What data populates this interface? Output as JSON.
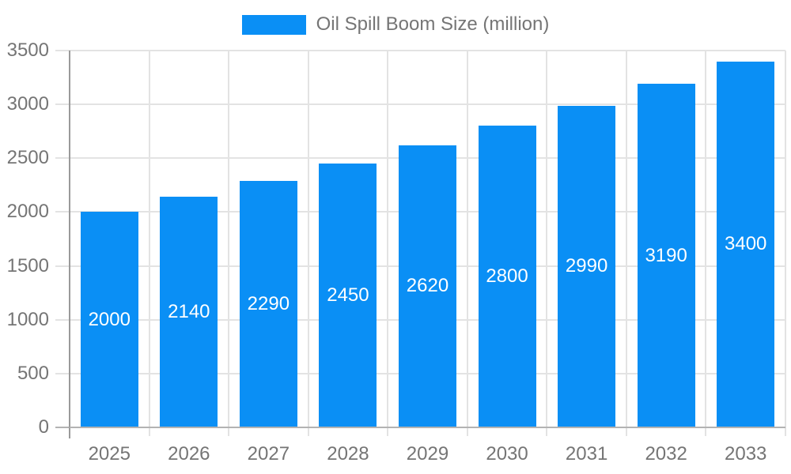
{
  "legend": {
    "label": "Oil Spill Boom Size (million)"
  },
  "colors": {
    "bar": "#0a8ff5",
    "grid": "#e3e3e3",
    "axis": "#9a9a9a",
    "baseline": "#b3b3b3",
    "text": "#757575",
    "bar_label": "#ffffff",
    "background": "#ffffff"
  },
  "chart_data": {
    "type": "bar",
    "title": "Oil Spill Boom Size (million)",
    "categories": [
      "2025",
      "2026",
      "2027",
      "2028",
      "2029",
      "2030",
      "2031",
      "2032",
      "2033"
    ],
    "values": [
      2000,
      2140,
      2290,
      2450,
      2620,
      2800,
      2990,
      3190,
      3400
    ],
    "xlabel": "",
    "ylabel": "",
    "ylim": [
      0,
      3500
    ],
    "ytick_step": 500,
    "yticks": [
      0,
      500,
      1000,
      1500,
      2000,
      2500,
      3000,
      3500
    ],
    "grid": true,
    "legend_position": "top",
    "bar_value_labels_inside": true
  }
}
